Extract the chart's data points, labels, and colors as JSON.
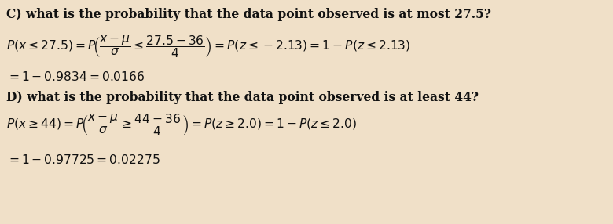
{
  "bg_color": "#f0e0c8",
  "text_color": "#111111",
  "title_C": "C) what is the probability that the data point observed is at most 27.5?",
  "line_C1": "$P(x \\leq 27.5) = P\\!\\left(\\dfrac{x-\\mu}{\\sigma} \\leq \\dfrac{27.5-36}{4}\\right) = P(z \\leq -2.13) = 1 - P(z \\leq 2.13)$",
  "line_C2": "$= 1 - 0.9834 = 0.0166$",
  "title_D": "D) what is the probability that the data point observed is at least 44?",
  "line_D1": "$P(x \\geq 44) = P\\!\\left(\\dfrac{x-\\mu}{\\sigma} \\geq \\dfrac{44-36}{4}\\right) = P(z \\geq 2.0) = 1 - P(z \\leq 2.0)$",
  "line_D2": "$= 1 - 0.97725 = 0.02275$",
  "figsize": [
    7.8,
    2.86
  ],
  "dpi": 100
}
